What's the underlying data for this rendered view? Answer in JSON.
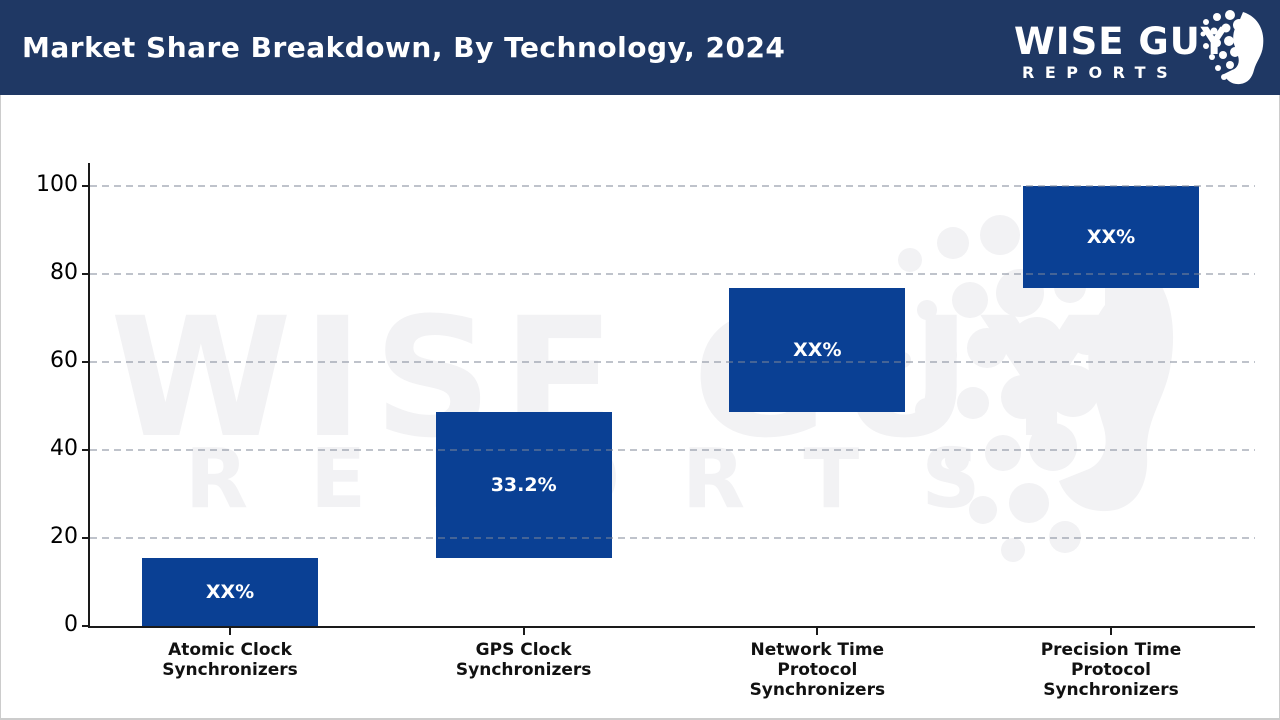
{
  "header": {
    "title": "Market Share Breakdown, By Technology, 2024",
    "bg_color": "#1f3864",
    "logo": {
      "line1": "WISE GUY",
      "line2": "REPORTS"
    }
  },
  "watermark": {
    "line1": "WISE GUY",
    "line2": "REPORTS"
  },
  "chart_data": {
    "type": "bar",
    "subtype": "waterfall",
    "title": "Market Share Breakdown, By Technology, 2024",
    "categories": [
      "Atomic Clock\nSynchronizers",
      "GPS Clock\nSynchronizers",
      "Network Time\nProtocol\nSynchronizers",
      "Precision Time\nProtocol\nSynchronizers"
    ],
    "segments": [
      {
        "start": 0,
        "end": 15.4,
        "label": "XX%"
      },
      {
        "start": 15.4,
        "end": 48.6,
        "label": "33.2%"
      },
      {
        "start": 48.6,
        "end": 76.8,
        "label": "XX%"
      },
      {
        "start": 76.8,
        "end": 100,
        "label": "XX%"
      }
    ],
    "xlabel": "",
    "ylabel": "",
    "y_ticks": [
      0,
      20,
      40,
      60,
      80,
      100
    ],
    "ylim": [
      0,
      105
    ],
    "grid": "horizontal-dashed",
    "legend": "none",
    "bar_color": "#0a4094",
    "grid_color": "#d4d7dd",
    "axis_color": "#1a1a1a"
  }
}
